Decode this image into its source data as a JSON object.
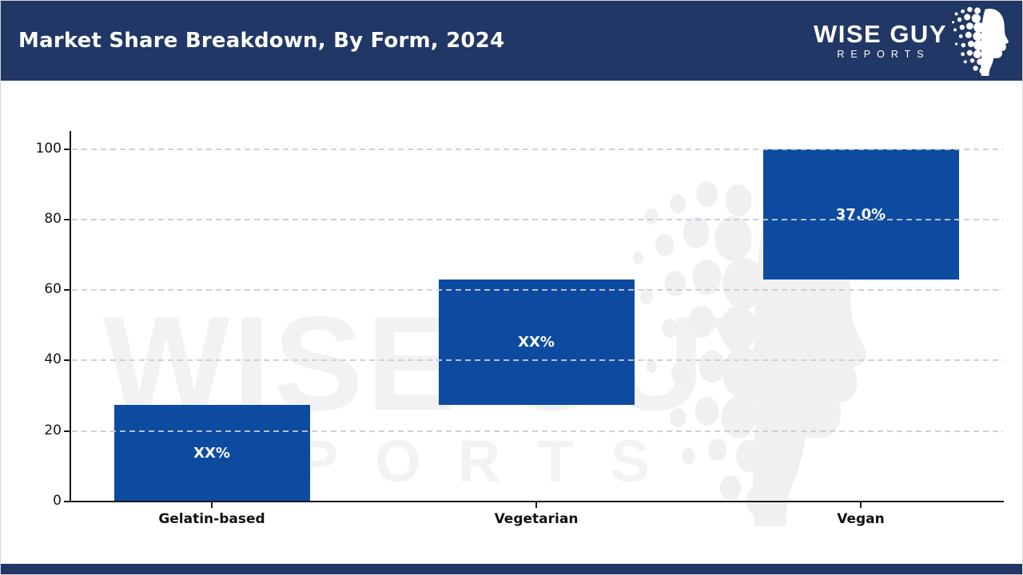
{
  "header": {
    "title": "Market Share Breakdown, By Form, 2024",
    "logo": {
      "line1": "WISE GUY",
      "line2": "REPORTS"
    }
  },
  "watermark": {
    "line1": "WISE GUY",
    "line2": "REPORTS"
  },
  "footer": {},
  "colors": {
    "header_bg": "#213765",
    "footer_bg": "#213765",
    "bar": "#0d4ba1",
    "bar_label": "#ffffff",
    "gridline": "#d9dbe0",
    "axis": "#1a1a1a",
    "watermark": "#f2f2f4"
  },
  "chart_data": {
    "type": "bar",
    "subtype": "waterfall",
    "title": "Market Share Breakdown, By Form, 2024",
    "categories": [
      "Gelatin-based",
      "Vegetarian",
      "Vegan"
    ],
    "segments": [
      {
        "category": "Gelatin-based",
        "start": 0,
        "end": 27.5,
        "value": 27.5,
        "label": "XX%"
      },
      {
        "category": "Vegetarian",
        "start": 27.5,
        "end": 63,
        "value": 35.5,
        "label": "XX%"
      },
      {
        "category": "Vegan",
        "start": 63,
        "end": 100,
        "value": 37.0,
        "label": "37.0%"
      }
    ],
    "xlabel": "",
    "ylabel": "",
    "yticks": [
      0,
      20,
      40,
      60,
      80,
      100
    ],
    "ylim": [
      0,
      104
    ],
    "grid": {
      "axis": "y",
      "style": "dashed",
      "over_bars": true
    },
    "legend": null
  }
}
